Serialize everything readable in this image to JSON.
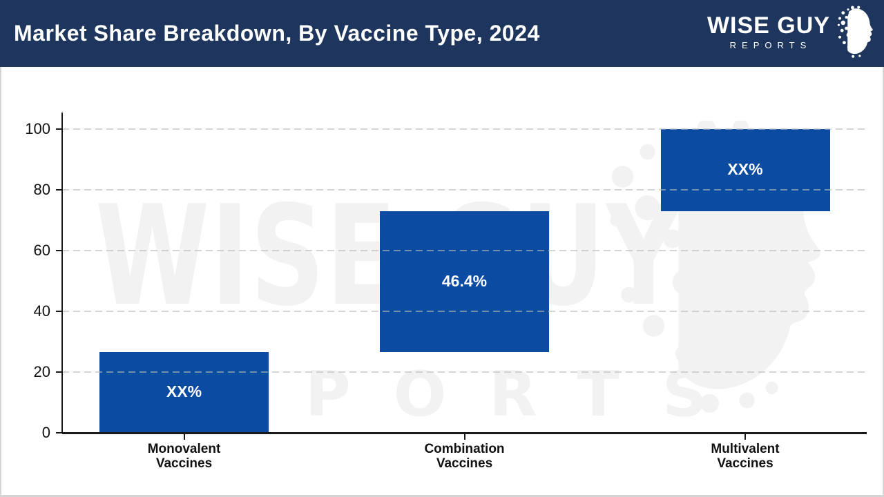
{
  "header": {
    "title": "Market Share Breakdown, By Vaccine Type, 2024",
    "bg_color": "#1e355e",
    "logo": {
      "line1": "WISE GUY",
      "line2": "REPORTS"
    }
  },
  "watermark": {
    "line1": "WISE GUY",
    "line2": "REPORTS",
    "color": "#f2f2f2"
  },
  "chart_data": {
    "type": "bar",
    "subtype": "floating-segment-waterfall",
    "title": "Market Share Breakdown, By Vaccine Type, 2024",
    "categories": [
      "Monovalent Vaccines",
      "Combination Vaccines",
      "Multivalent Vaccines"
    ],
    "category_lines": [
      [
        "Monovalent",
        "Vaccines"
      ],
      [
        "Combination",
        "Vaccines"
      ],
      [
        "Multivalent",
        "Vaccines"
      ]
    ],
    "segments": [
      {
        "category": "Monovalent Vaccines",
        "start": 0,
        "end": 26.6,
        "label": "XX%"
      },
      {
        "category": "Combination Vaccines",
        "start": 26.6,
        "end": 73.0,
        "label": "46.4%"
      },
      {
        "category": "Multivalent Vaccines",
        "start": 73.0,
        "end": 100,
        "label": "XX%"
      }
    ],
    "xlabel": "",
    "ylabel": "",
    "ylim": [
      0,
      100
    ],
    "yticks": [
      0,
      20,
      40,
      60,
      80,
      100
    ],
    "grid": "horizontal-dashed",
    "legend": "none",
    "bar_color": "#0b4ba1",
    "bar_label_color": "#ffffff"
  }
}
